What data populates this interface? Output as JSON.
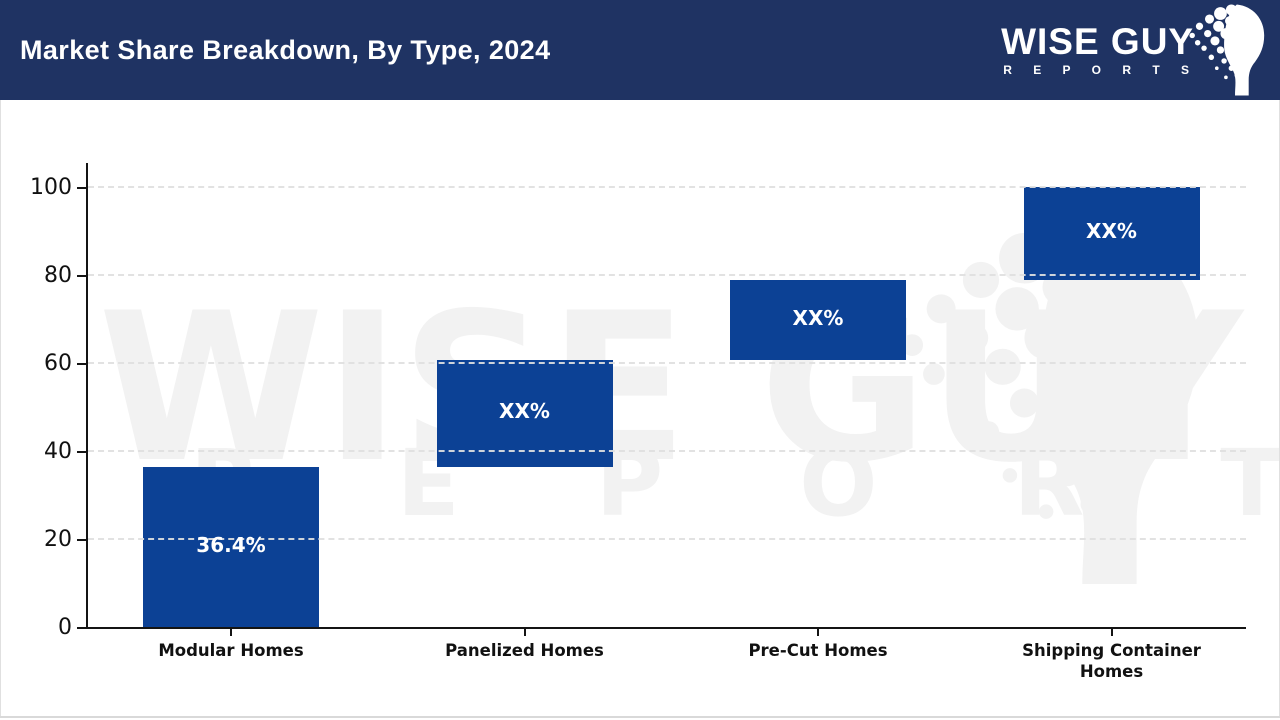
{
  "header": {
    "title": "Market Share Breakdown, By Type, 2024",
    "logo": {
      "line1": "WISE GUY",
      "line2": "R E P O R T S"
    }
  },
  "watermark": {
    "line1": "WISE GUY",
    "line2": "R E P O R T S"
  },
  "colors": {
    "header_background": "#1f3363",
    "bar": "#0c4195",
    "grid": "#dfdfdf",
    "axis": "#141414",
    "bar_label": "#ffffff",
    "watermark": "#f2f2f2"
  },
  "chart_data": {
    "type": "bar",
    "subtype": "waterfall",
    "title": "Market Share Breakdown, By Type, 2024",
    "xlabel": "",
    "ylabel": "",
    "categories": [
      "Modular Homes",
      "Panelized Homes",
      "Pre-Cut Homes",
      "Shipping Container Homes"
    ],
    "segments": [
      {
        "category": "Modular Homes",
        "start": 0,
        "end": 36.4,
        "label": "36.4%"
      },
      {
        "category": "Panelized Homes",
        "start": 36.4,
        "end": 60.7,
        "label": "XX%"
      },
      {
        "category": "Pre-Cut Homes",
        "start": 60.7,
        "end": 78.9,
        "label": "XX%"
      },
      {
        "category": "Shipping Container Homes",
        "start": 78.9,
        "end": 100,
        "label": "XX%"
      }
    ],
    "y_ticks": [
      0,
      20,
      40,
      60,
      80,
      100
    ],
    "ylim": [
      0,
      105.5
    ],
    "grid": "dashed-horizontal, drawn over bars",
    "legend": "none"
  }
}
